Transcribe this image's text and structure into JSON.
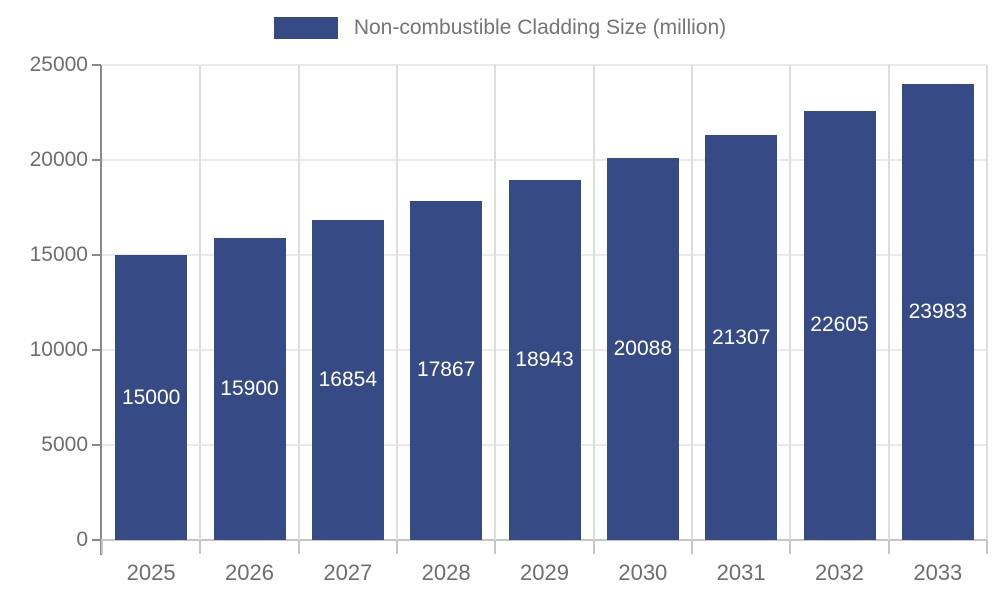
{
  "legend": {
    "label": "Non-combustible Cladding Size (million)"
  },
  "colors": {
    "background": "#FFFFFF",
    "bar": "#364A86",
    "bar_label": "#FFFFFF",
    "axis_label": "#6E6E6E",
    "legend_label": "#757575",
    "y_axis_line": "#8A8A8A",
    "x_axis_line": "#C6C6C6",
    "h_gridline": "#EAEAEA",
    "v_gridline": "#DDDDDD"
  },
  "chart_data": {
    "type": "bar",
    "title": "",
    "categories": [
      "2025",
      "2026",
      "2027",
      "2028",
      "2029",
      "2030",
      "2031",
      "2032",
      "2033"
    ],
    "series": [
      {
        "name": "Non-combustible Cladding Size (million)",
        "values": [
          15000,
          15900,
          16854,
          17867,
          18943,
          20088,
          21307,
          22605,
          23983
        ]
      }
    ],
    "xlabel": "",
    "ylabel": "",
    "ylim": [
      0,
      25000
    ],
    "y_ticks": [
      0,
      5000,
      10000,
      15000,
      20000,
      25000
    ],
    "grid": true,
    "legend_position": "top-center",
    "value_labels": "inside-center"
  }
}
